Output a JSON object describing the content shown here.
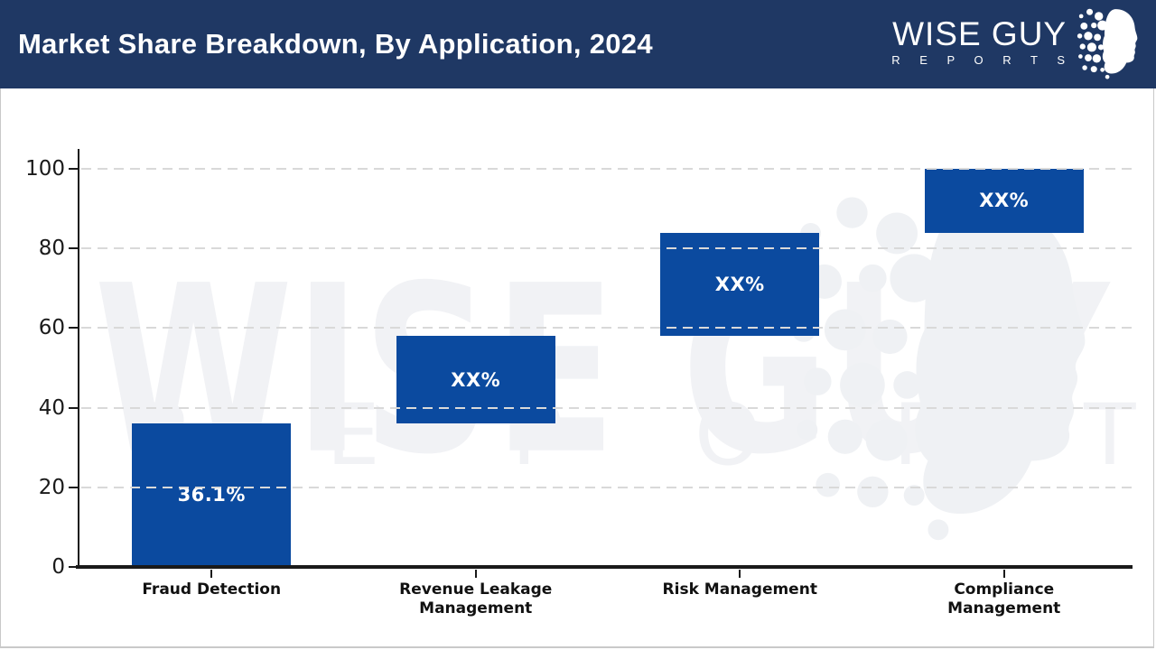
{
  "header": {
    "title": "Market Share Breakdown, By Application, 2024",
    "logo": {
      "primary": "WISE GUY",
      "secondary": "R E P O R T S"
    }
  },
  "watermark": {
    "primary": "WISE GUY",
    "secondary": "R E P O R T S"
  },
  "chart_data": {
    "type": "bar",
    "subtype": "floating-waterfall",
    "title": "Market Share Breakdown, By Application, 2024",
    "categories": [
      "Fraud Detection",
      "Revenue Leakage Management",
      "Risk Management",
      "Compliance Management"
    ],
    "segments": [
      {
        "category": "Fraud Detection",
        "start": 0,
        "end": 36.1,
        "label": "36.1%"
      },
      {
        "category": "Revenue Leakage Management",
        "start": 36.1,
        "end": 58,
        "label": "XX%"
      },
      {
        "category": "Risk Management",
        "start": 58,
        "end": 84,
        "label": "XX%"
      },
      {
        "category": "Compliance Management",
        "start": 84,
        "end": 100,
        "label": "XX%"
      }
    ],
    "ylim": [
      0,
      100
    ],
    "yticks": [
      0,
      20,
      40,
      60,
      80,
      100
    ],
    "xlabel": "",
    "ylabel": "",
    "grid": "horizontal-dashed",
    "legend": "none",
    "colors": {
      "bar": "#0B4A9F",
      "bar_label": "#ffffff",
      "header_bg": "#1F3864",
      "header_text": "#ffffff",
      "axis": "#1a1a1a",
      "gridline": "#d9d9d9",
      "tick_label": "#1a1a1a",
      "category_label": "#111111",
      "watermark": "#f1f2f5",
      "frame_border": "#c9c9c9"
    }
  }
}
